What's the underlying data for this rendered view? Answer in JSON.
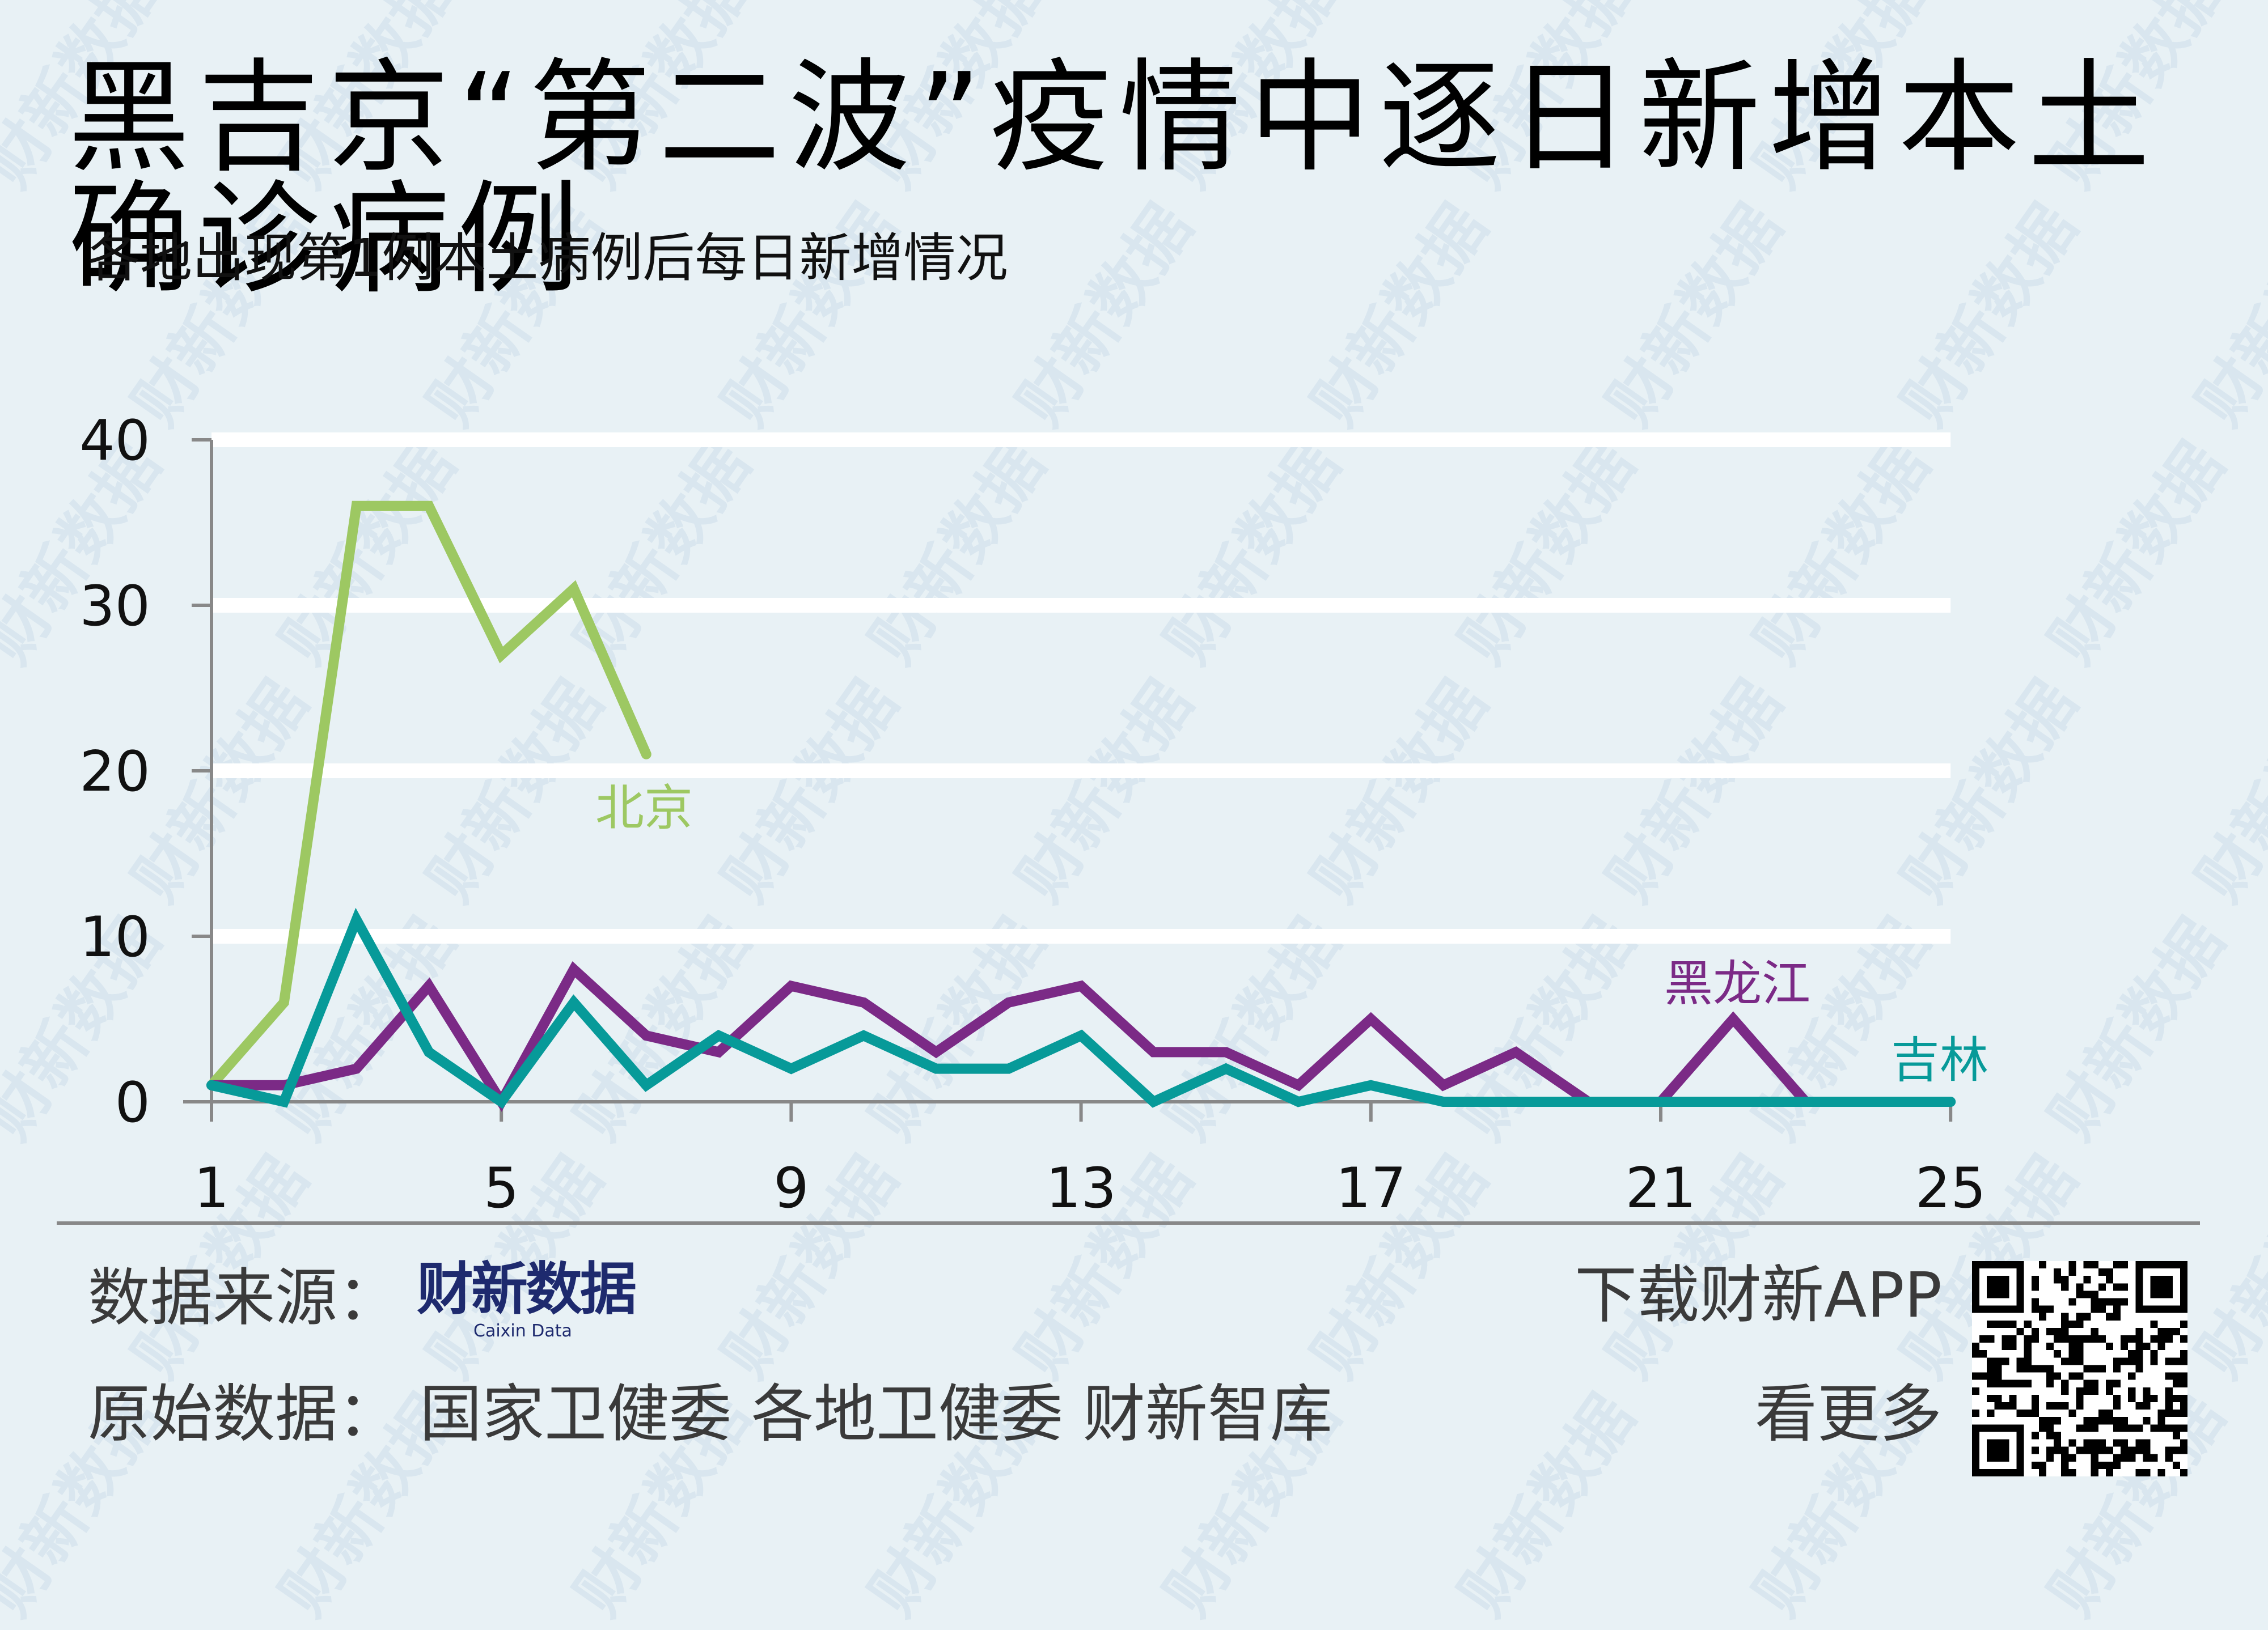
{
  "header": {
    "title": "黑吉京“第二波”疫情中逐日新增本土确诊病例",
    "subtitle": "各地出现第1例本土病例后每日新增情况"
  },
  "watermark": "财新数据",
  "colors": {
    "beijing": "#9dc862",
    "heilongjiang": "#7b2a86",
    "jilin": "#079a99",
    "grid": "#ffffff",
    "axis": "#888888",
    "background": "#e8f1f5"
  },
  "chart_data": {
    "type": "line",
    "title": "黑吉京“第二波”疫情中逐日新增本土确诊病例",
    "subtitle": "各地出现第1例本土病例后每日新增情况",
    "xlabel": "",
    "ylabel": "",
    "x": [
      1,
      2,
      3,
      4,
      5,
      6,
      7,
      8,
      9,
      10,
      11,
      12,
      13,
      14,
      15,
      16,
      17,
      18,
      19,
      20,
      21,
      22,
      23,
      24,
      25
    ],
    "x_ticks": [
      1,
      5,
      9,
      13,
      17,
      21,
      25
    ],
    "y_ticks": [
      0,
      10,
      20,
      30,
      40
    ],
    "ylim": [
      0,
      40
    ],
    "xlim": [
      1,
      25
    ],
    "grid": true,
    "legend_position": "inline labels near line ends",
    "series": [
      {
        "name": "北京",
        "color": "#9dc862",
        "values": [
          1,
          6,
          36,
          36,
          27,
          31,
          21
        ]
      },
      {
        "name": "黑龙江",
        "color": "#7b2a86",
        "values": [
          1,
          1,
          2,
          7,
          0,
          8,
          4,
          3,
          7,
          6,
          3,
          6,
          7,
          3,
          3,
          1,
          5,
          1,
          3,
          0,
          0,
          5,
          0
        ]
      },
      {
        "name": "吉林",
        "color": "#079a99",
        "values": [
          1,
          0,
          11,
          3,
          0,
          6,
          1,
          4,
          2,
          4,
          2,
          2,
          4,
          0,
          2,
          0,
          1,
          0,
          0,
          0,
          0,
          0,
          0,
          0,
          0
        ]
      }
    ]
  },
  "labels": {
    "beijing": "北京",
    "heilongjiang": "黑龙江",
    "jilin": "吉林"
  },
  "axis": {
    "y_ticks": [
      "0",
      "10",
      "20",
      "30",
      "40"
    ],
    "x_ticks": [
      "1",
      "5",
      "9",
      "13",
      "17",
      "21",
      "25"
    ]
  },
  "footer": {
    "source_label": "数据来源：",
    "logo_cn": "财新数据",
    "logo_en": "Caixin Data",
    "raw_label": "原始数据：  国家卫健委  各地卫健委  财新智库",
    "app_label": "下载财新APP",
    "more_label": "看更多",
    "qr_icon": "qr-code-icon"
  }
}
